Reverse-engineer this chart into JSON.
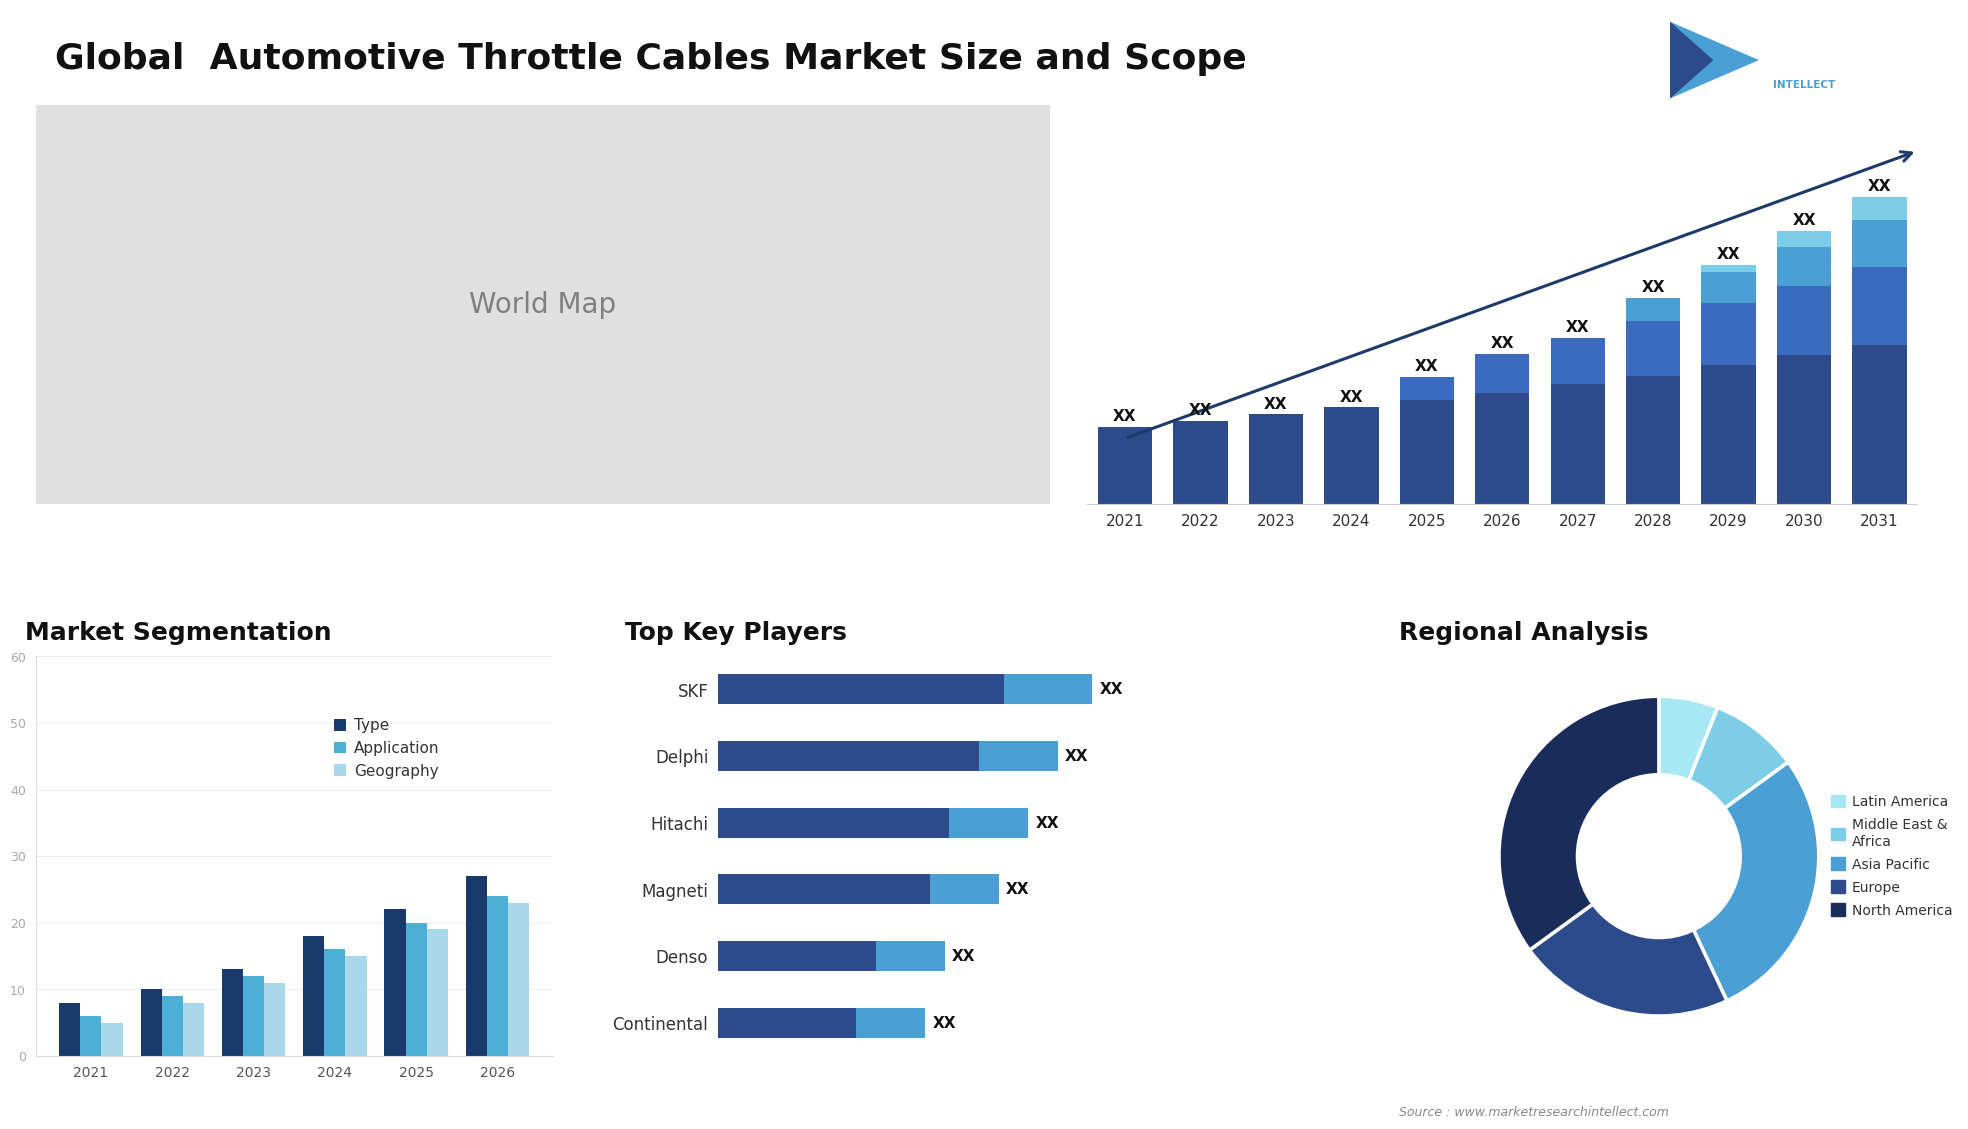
{
  "title": "Global  Automotive Throttle Cables Market Size and Scope",
  "title_fontsize": 26,
  "background_color": "#ffffff",
  "bar_chart": {
    "years": [
      "2021",
      "2022",
      "2023",
      "2024",
      "2025",
      "2026",
      "2027",
      "2028",
      "2029",
      "2030",
      "2031"
    ],
    "segments": {
      "seg1": [
        1.0,
        1.08,
        1.16,
        1.25,
        1.34,
        1.44,
        1.55,
        1.66,
        1.79,
        1.92,
        2.06
      ],
      "seg2": [
        0.0,
        0.0,
        0.0,
        0.0,
        0.3,
        0.5,
        0.6,
        0.7,
        0.8,
        0.9,
        1.0
      ],
      "seg3": [
        0.0,
        0.0,
        0.0,
        0.0,
        0.0,
        0.0,
        0.0,
        0.3,
        0.4,
        0.5,
        0.6
      ],
      "seg4": [
        0.0,
        0.0,
        0.0,
        0.0,
        0.0,
        0.0,
        0.0,
        0.0,
        0.1,
        0.2,
        0.3
      ]
    },
    "colors": [
      "#2d4a8a",
      "#3a6bbf",
      "#4a9fd4",
      "#7ecde8"
    ],
    "trend_line_color": "#1e3a6b",
    "label": "XX"
  },
  "segmentation_chart": {
    "title": "Market Segmentation",
    "years": [
      "2021",
      "2022",
      "2023",
      "2024",
      "2025",
      "2026"
    ],
    "type_vals": [
      8,
      10,
      13,
      18,
      22,
      27
    ],
    "app_vals": [
      6,
      9,
      12,
      16,
      20,
      24
    ],
    "geo_vals": [
      5,
      8,
      11,
      15,
      19,
      23
    ],
    "colors": [
      "#1a3a6b",
      "#4bafd6",
      "#a8d8ea"
    ],
    "legend_labels": [
      "Type",
      "Application",
      "Geography"
    ],
    "ylim": [
      0,
      60
    ],
    "yticks": [
      0,
      10,
      20,
      30,
      40,
      50,
      60
    ]
  },
  "key_players": {
    "title": "Top Key Players",
    "players": [
      "SKF",
      "Delphi",
      "Hitachi",
      "Magneti",
      "Denso",
      "Continental"
    ],
    "bar1_color": "#2d4a8a",
    "bar2_color": "#4a9fd4",
    "bar1_vals": [
      0.58,
      0.53,
      0.47,
      0.43,
      0.32,
      0.28
    ],
    "bar2_vals": [
      0.18,
      0.16,
      0.16,
      0.14,
      0.14,
      0.14
    ],
    "label": "XX"
  },
  "regional_analysis": {
    "title": "Regional Analysis",
    "labels": [
      "Latin America",
      "Middle East &\nAfrica",
      "Asia Pacific",
      "Europe",
      "North America"
    ],
    "sizes": [
      6,
      9,
      28,
      22,
      35
    ],
    "colors": [
      "#a8e8f4",
      "#7ecde8",
      "#4a9fd4",
      "#2d4a8a",
      "#1a2d5a"
    ]
  },
  "source_text": "Source : www.marketresearchintellect.com"
}
